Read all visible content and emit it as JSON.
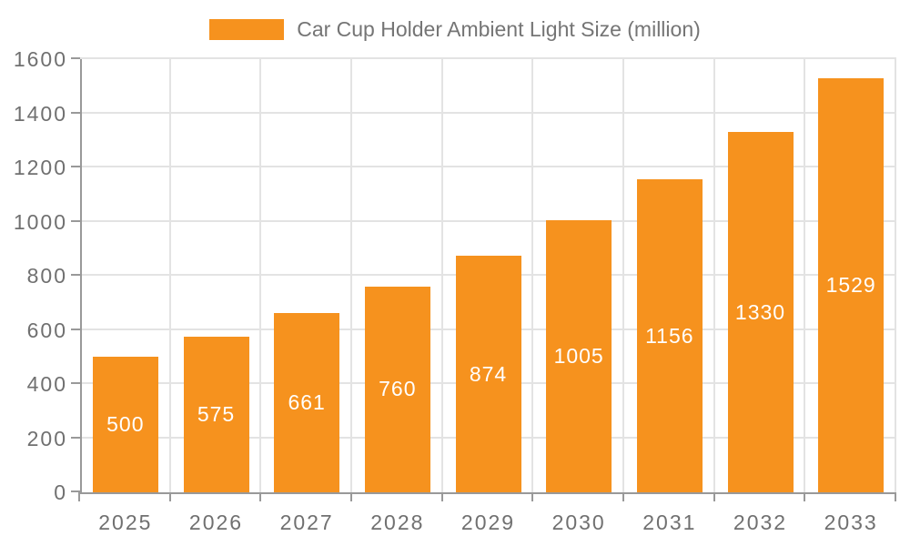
{
  "legend": {
    "label": "Car Cup Holder Ambient Light Size (million)"
  },
  "chart_data": {
    "type": "bar",
    "title": "Car Cup Holder Ambient Light Size (million)",
    "categories": [
      "2025",
      "2026",
      "2027",
      "2028",
      "2029",
      "2030",
      "2031",
      "2032",
      "2033"
    ],
    "series": [
      {
        "name": "Car Cup Holder Ambient Light Size (million)",
        "values": [
          500,
          575,
          661,
          760,
          874,
          1005,
          1156,
          1330,
          1529
        ]
      }
    ],
    "xlabel": "",
    "ylabel": "",
    "ylim": [
      0,
      1600
    ],
    "yticks": [
      0,
      200,
      400,
      600,
      800,
      1000,
      1200,
      1400,
      1600
    ],
    "grid": true,
    "legend_position": "top-center",
    "bar_label_position": "inside-center"
  },
  "theme": {
    "bar_color": "#F6921E",
    "bar_label_color": "#FFFFFF",
    "grid_color": "#E3E3E3",
    "axis_color": "#999999",
    "axis_label_color": "#707070",
    "legend_text_color": "#757575",
    "background": "#FFFFFF"
  }
}
